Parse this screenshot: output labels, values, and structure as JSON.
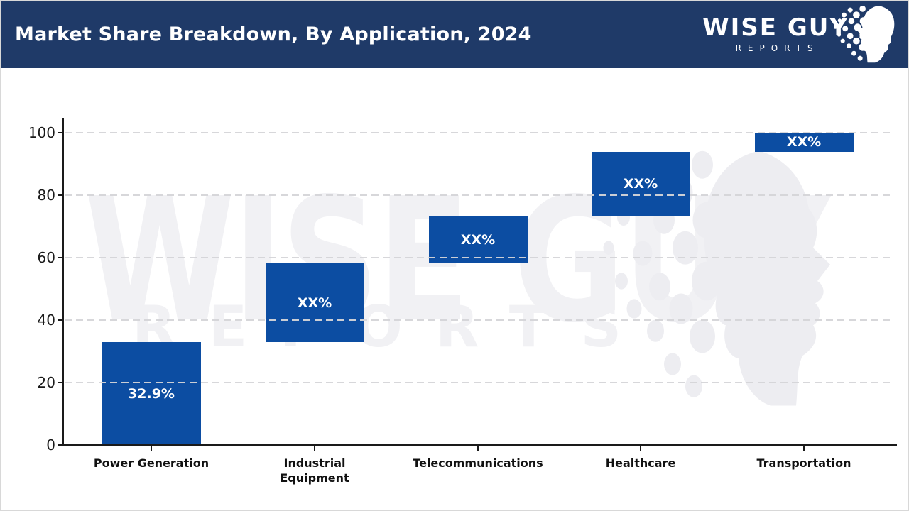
{
  "header": {
    "title": "Market Share Breakdown, By Application, 2024",
    "bg_color": "#1f3a68",
    "logo": {
      "wordmark": "WISE GUY",
      "subtitle": "REPORTS"
    }
  },
  "watermark": {
    "wordmark": "WISE GUY",
    "subtitle": "REPORTS"
  },
  "chart_data": {
    "type": "bar",
    "subtype": "waterfall",
    "title": "Market Share Breakdown, By Application, 2024",
    "categories": [
      "Power Generation",
      "Industrial\nEquipment",
      "Telecommunications",
      "Healthcare",
      "Transportation"
    ],
    "segments": [
      {
        "category": "Power Generation",
        "start": 0,
        "end": 32.9,
        "label": "32.9%"
      },
      {
        "category": "Industrial Equipment",
        "start": 32.9,
        "end": 58.1,
        "label": "XX%"
      },
      {
        "category": "Telecommunications",
        "start": 58.1,
        "end": 73.2,
        "label": "XX%"
      },
      {
        "category": "Healthcare",
        "start": 73.2,
        "end": 93.9,
        "label": "XX%"
      },
      {
        "category": "Transportation",
        "start": 93.9,
        "end": 100,
        "label": "XX%"
      }
    ],
    "xlabel": "",
    "ylabel": "",
    "ylim": [
      0,
      100
    ],
    "y_ticks": [
      0,
      20,
      40,
      60,
      80,
      100
    ],
    "grid": "horizontal-dashed",
    "legend": "none",
    "bar_color": "#0c4da2",
    "bar_label_color": "#ffffff",
    "axis_color": "#1a1a1a",
    "grid_color": "#d7d7d7"
  }
}
